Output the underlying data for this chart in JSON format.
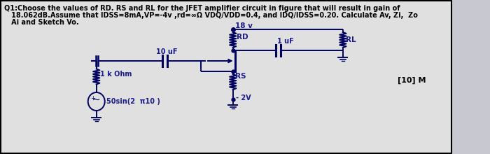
{
  "bg_color": "#c8c8d0",
  "inner_bg": "#e0e0e0",
  "text_color": "#1a1a8c",
  "wire_color": "#000060",
  "title_line1": "Q1:Choose the values of RD. RS and RL for the JFET amplifier circuit in figure that will result in gain of",
  "title_line2": "   18.062dB.Assume that IDSS=8mA,VP=-4v ,rd=∞Ω VDQ/VDD=0.4, and IDQ/IDSS=0.20. Calculate Av, Zi,  Zo",
  "title_line3": "   Ai and Sketch Vo.",
  "marks": "[10] M",
  "vdd_label": "18 v",
  "rd_label": "RD",
  "cap_out_label": "1 uF",
  "rl_label": "RL",
  "cap_in_label": "10 uF",
  "rs_label": "RS",
  "r1_label": "1 k Ohm",
  "vsrc_label": "50sin(2  π10 )",
  "neg_v_label": "- 2V",
  "figwidth": 7.0,
  "figheight": 2.2,
  "dpi": 100
}
